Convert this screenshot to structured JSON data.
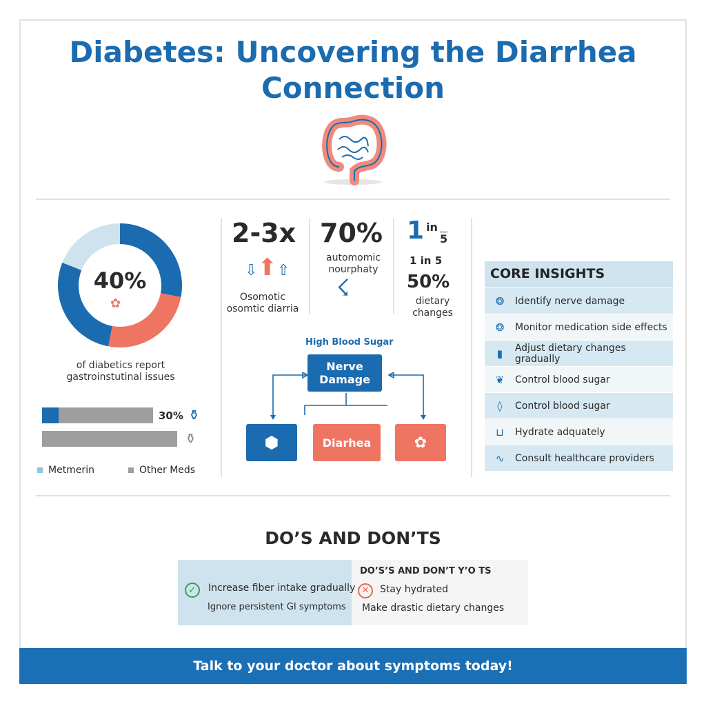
{
  "title": "Diabetes: Uncovering the Diarrhea Connection",
  "donut": {
    "center_label": "40%",
    "caption_line1": "of diabetics report",
    "caption_line2": "gastroinstutinal issues",
    "segments": [
      {
        "fraction": 0.28,
        "color": "#1b6bb0"
      },
      {
        "fraction": 0.25,
        "color": "#ef7563"
      },
      {
        "fraction": 0.28,
        "color": "#1b6bb0"
      },
      {
        "fraction": 0.19,
        "color": "#cfe3ee"
      }
    ]
  },
  "bars": {
    "metformin_pct": 30,
    "metformin_label": "30%",
    "legend": [
      {
        "label": "Metmerin",
        "color": "#8fc3e0"
      },
      {
        "label": "Other Meds",
        "color": "#9e9e9e"
      }
    ]
  },
  "stats": [
    {
      "value": "2-3x",
      "line1": "Osomotic",
      "line2": "osomtic diarria"
    },
    {
      "value": "70%",
      "line1": "automomic",
      "line2": "nourphaty"
    },
    {
      "big": "1",
      "in": "in",
      "den": "5",
      "sub": "1 in 5",
      "value": "50%",
      "line1": "dietary",
      "line2": "changes"
    }
  ],
  "flow": {
    "top_label": "High Blood Sugar",
    "center": "Nerve Damage",
    "bottom_middle": "Diarhea"
  },
  "insights": {
    "header": "CORE INSIGHTS",
    "items": [
      {
        "icon": "brain-icon",
        "label": "Identify nerve damage"
      },
      {
        "icon": "brain-icon",
        "label": "Monitor medication side effects"
      },
      {
        "icon": "bottle-icon",
        "label": "Adjust dietary changes gradually"
      },
      {
        "icon": "leaf-icon",
        "label": "Control blood sugar"
      },
      {
        "icon": "drop-icon",
        "label": "Control blood sugar"
      },
      {
        "icon": "cup-icon",
        "label": "Hydrate adquately"
      },
      {
        "icon": "stethoscope-icon",
        "label": "Consult healthcare providers"
      }
    ]
  },
  "dos": {
    "title": "DO’S AND DON’TS",
    "right_header": "DO’S’S AND DON’T Y’O TS",
    "left": [
      "Increase fiber intake gradually",
      "Ignore persistent GI symptoms"
    ],
    "right": [
      "Stay hydrated",
      "Make drastic dietary changes"
    ]
  },
  "footer": "Talk to your doctor about symptoms today!"
}
